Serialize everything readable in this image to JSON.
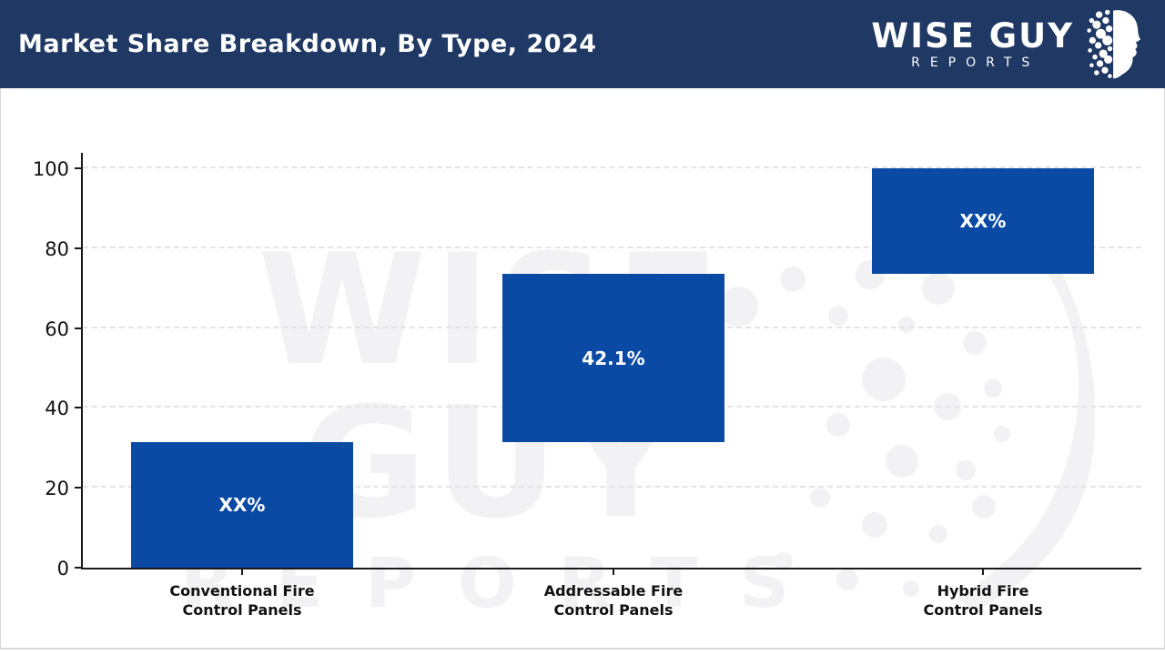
{
  "header": {
    "title": "Market Share Breakdown, By Type, 2024",
    "bg_color": "#1F3864",
    "logo": {
      "line1": "WISE GUY",
      "line2": "REPORTS"
    }
  },
  "watermark": {
    "line1": "WISE GUY",
    "line2": "REPORTS"
  },
  "chart_data": {
    "type": "bar",
    "variant": "floating-segment-waterfall",
    "title": "Market Share Breakdown, By Type, 2024",
    "categories": [
      [
        "Conventional Fire",
        "Control Panels"
      ],
      [
        "Addressable Fire",
        "Control Panels"
      ],
      [
        "Hybrid Fire",
        "Control Panels"
      ]
    ],
    "segments": [
      {
        "start": 0,
        "end": 31.4,
        "label": "XX%"
      },
      {
        "start": 31.4,
        "end": 73.5,
        "label": "42.1%"
      },
      {
        "start": 73.5,
        "end": 100,
        "label": "XX%"
      }
    ],
    "ylim": [
      0,
      100
    ],
    "yticks": [
      0,
      20,
      40,
      60,
      80,
      100
    ],
    "xlabel": "",
    "ylabel": "",
    "grid": "horizontal-dashed",
    "legend": "none",
    "bar_color": "#0A4AA5",
    "bar_label_color": "#FFFFFF",
    "axis_color": "#1a1a1a"
  }
}
